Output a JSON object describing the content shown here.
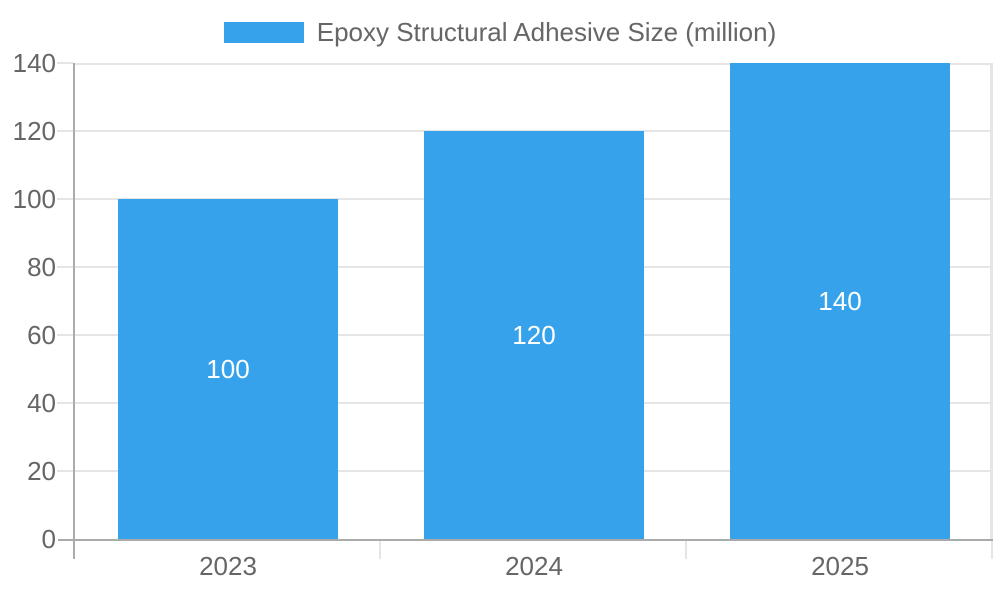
{
  "legend": {
    "label": "Epoxy Structural Adhesive Size (million)"
  },
  "colors": {
    "bar": "#36A2EB",
    "bar_label": "#FFFFFF",
    "text": "#666666",
    "gridline": "#E5E5E5",
    "axis_line": "#ABABAB",
    "background": "#FFFFFF"
  },
  "chart_data": {
    "type": "bar",
    "title": "Epoxy Structural Adhesive Size (million)",
    "categories": [
      "2023",
      "2024",
      "2025"
    ],
    "series": [
      {
        "name": "Epoxy Structural Adhesive Size (million)",
        "values": [
          100,
          120,
          140
        ]
      }
    ],
    "bar_labels": [
      "100",
      "120",
      "140"
    ],
    "xlabel": "",
    "ylabel": "",
    "ylim": [
      0,
      140
    ],
    "yticks": [
      0,
      20,
      40,
      60,
      80,
      100,
      120,
      140
    ],
    "grid": true,
    "legend_position": "top",
    "bar_label_position": "center-inside"
  }
}
